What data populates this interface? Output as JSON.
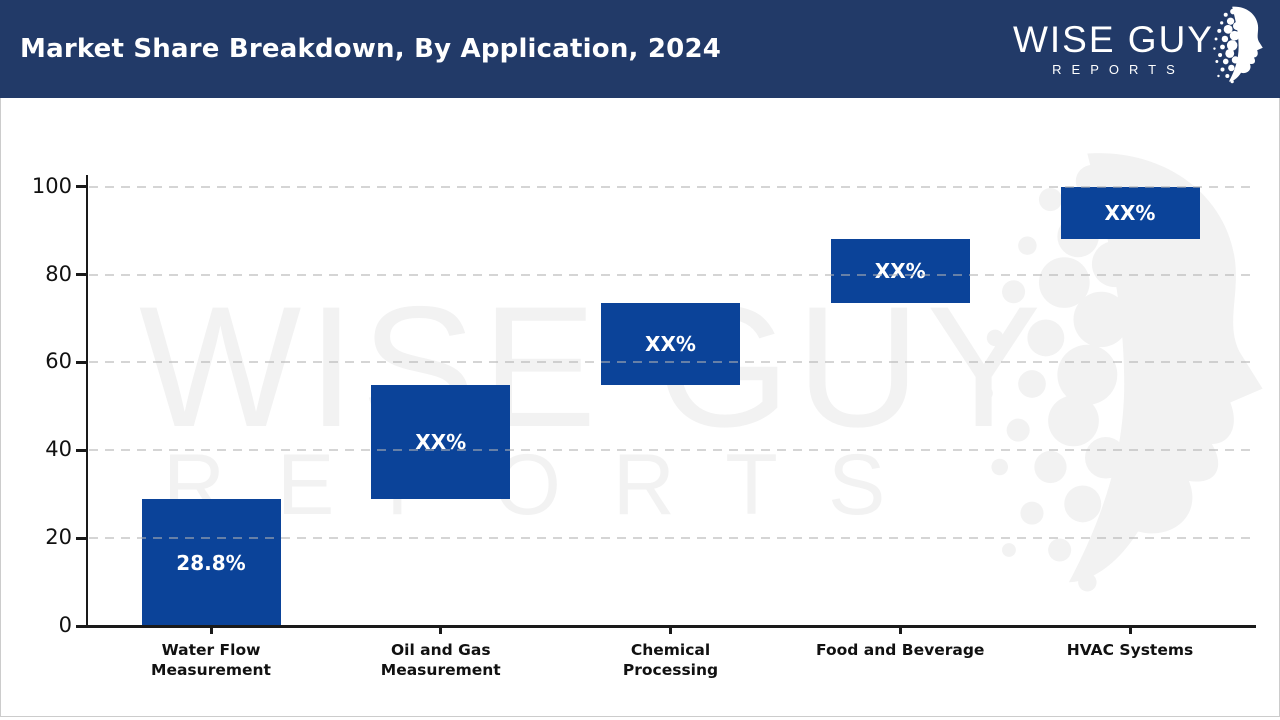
{
  "header": {
    "title": "Market Share Breakdown, By Application, 2024",
    "logo": {
      "wordmark": "WISE GUY",
      "sub": "REPORTS"
    }
  },
  "watermark": {
    "wordmark": "WISE GUY",
    "sub": "R E P O R T S"
  },
  "chart_data": {
    "type": "bar",
    "subtype": "waterfall-stacked-breakdown",
    "title": "Market Share Breakdown, By Application, 2024",
    "categories": [
      "Water Flow Measurement",
      "Oil and Gas Measurement",
      "Chemical Processing",
      "Food and Beverage",
      "HVAC Systems"
    ],
    "category_lines": [
      [
        "Water Flow",
        "Measurement"
      ],
      [
        "Oil and Gas",
        "Measurement"
      ],
      [
        "Chemical",
        "Processing"
      ],
      [
        "Food and Beverage"
      ],
      [
        "HVAC Systems"
      ]
    ],
    "segments": [
      {
        "category": "Water Flow Measurement",
        "start": 0,
        "end": 28.8,
        "label": "28.8%"
      },
      {
        "category": "Oil and Gas Measurement",
        "start": 28.8,
        "end": 54.9,
        "label": "XX%"
      },
      {
        "category": "Chemical Processing",
        "start": 54.9,
        "end": 73.5,
        "label": "XX%"
      },
      {
        "category": "Food and Beverage",
        "start": 73.5,
        "end": 88.1,
        "label": "XX%"
      },
      {
        "category": "HVAC Systems",
        "start": 88.1,
        "end": 100,
        "label": "XX%"
      }
    ],
    "yticks": [
      0,
      20,
      40,
      60,
      80,
      100
    ],
    "ylim": [
      0,
      102
    ],
    "xlabel": "",
    "ylabel": "",
    "grid": "horizontal-dashed",
    "legend": "none",
    "bar_color": "#0B4399",
    "bar_label_color": "#ffffff"
  },
  "colors": {
    "header_bg": "#223A68",
    "bar": "#0B4399",
    "axis": "#1a1a1a",
    "gridline": "#d4d4d4",
    "watermark": "#f2f2f2",
    "frame_border": "#cccccc"
  },
  "icons": {
    "logo_face": "face-profile-dots-icon"
  }
}
